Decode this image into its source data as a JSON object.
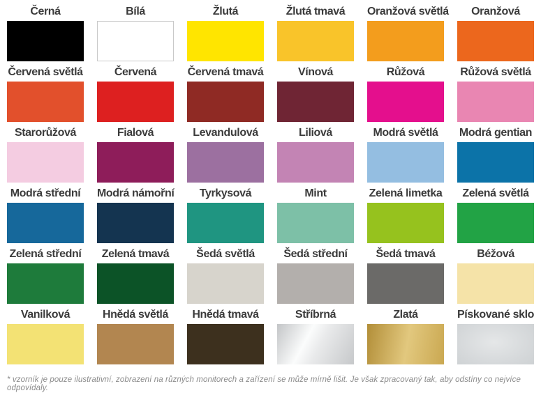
{
  "page": {
    "background": "#ffffff",
    "label_color": "#3b3b3b",
    "footnote": "* vzorník je pouze ilustrativní, zobrazení na různých monitorech a zařízení se může mírně lišit. Je však zpracovaný tak, aby odstíny co nejvíce odpovídaly."
  },
  "swatches": [
    {
      "label": "Černá",
      "background": "#000000"
    },
    {
      "label": "Bílá",
      "background": "#ffffff",
      "border": "#c9c9c9"
    },
    {
      "label": "Žlutá",
      "background": "#ffe500"
    },
    {
      "label": "Žlutá tmavá",
      "background": "#f9c42a"
    },
    {
      "label": "Oranžová světlá",
      "background": "#f39d1d"
    },
    {
      "label": "Oranžová",
      "background": "#ec671d"
    },
    {
      "label": "Červená světlá",
      "background": "#e2502c"
    },
    {
      "label": "Červená",
      "background": "#dd2020"
    },
    {
      "label": "Červená tmavá",
      "background": "#8f2a24"
    },
    {
      "label": "Vínová",
      "background": "#6f2534"
    },
    {
      "label": "Růžová",
      "background": "#e40f8d"
    },
    {
      "label": "Růžová světlá",
      "background": "#e986b2"
    },
    {
      "label": "Starorůžová",
      "background": "#f4cce1"
    },
    {
      "label": "Fialová",
      "background": "#8e1d5a"
    },
    {
      "label": "Levandulová",
      "background": "#9c70a0"
    },
    {
      "label": "Liliová",
      "background": "#c384b4"
    },
    {
      "label": "Modrá světlá",
      "background": "#94bee1"
    },
    {
      "label": "Modrá gentian",
      "background": "#0c73a8"
    },
    {
      "label": "Modrá střední",
      "background": "#16689b"
    },
    {
      "label": "Modrá námořní",
      "background": "#143450"
    },
    {
      "label": "Tyrkysová",
      "background": "#1f9581"
    },
    {
      "label": "Mint",
      "background": "#7dc0a7"
    },
    {
      "label": "Zelená limetka",
      "background": "#96c21e"
    },
    {
      "label": "Zelená světlá",
      "background": "#22a345"
    },
    {
      "label": "Zelená střední",
      "background": "#1e7b3b"
    },
    {
      "label": "Zelená tmavá",
      "background": "#0c5327"
    },
    {
      "label": "Šedá světlá",
      "background": "#d7d4cc"
    },
    {
      "label": "Šedá střední",
      "background": "#b3afac"
    },
    {
      "label": "Šedá tmavá",
      "background": "#6b6a68"
    },
    {
      "label": "Béžová",
      "background": "#f5e3a8"
    },
    {
      "label": "Vanilková",
      "background": "#f3e274"
    },
    {
      "label": "Hnědá světlá",
      "background": "#b28650"
    },
    {
      "label": "Hnědá tmavá",
      "background": "#3d301e"
    },
    {
      "label": "Stříbrná",
      "background": "linear-gradient(118deg, #c3c5c7 0%, #fbfcfc 38%, #e9eaeb 55%, #c6c8ca 100%)"
    },
    {
      "label": "Zlatá",
      "background": "linear-gradient(100deg, #b28e38 0%, #e2c87e 52%, #caa851 100%)"
    },
    {
      "label": "Pískované sklo",
      "background": "radial-gradient(ellipse 80% 90% at 48% 45%, #e5e7e8 0%, #d5d8da 60%, #cbcfd1 100%)"
    }
  ]
}
